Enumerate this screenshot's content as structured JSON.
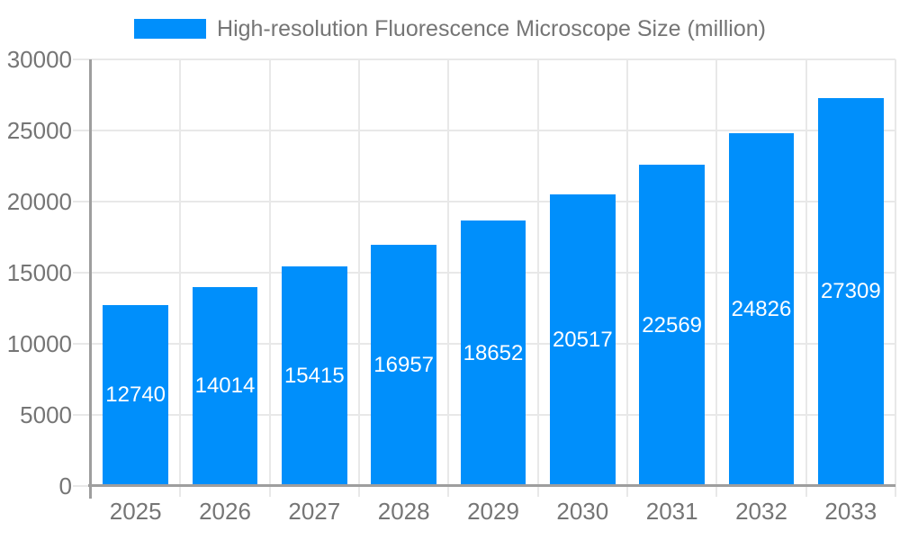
{
  "legend": {
    "series_label": "High-resolution Fluorescence Microscope Size (million)"
  },
  "colors": {
    "bar": "#008FFB",
    "grid": "#E8E8E8",
    "axis": "#9E9E9E",
    "text": "#757575",
    "value_label": "#FFFFFF",
    "background": "#FFFFFF"
  },
  "chart_data": {
    "type": "bar",
    "title": "High-resolution Fluorescence Microscope Size (million)",
    "categories": [
      "2025",
      "2026",
      "2027",
      "2028",
      "2029",
      "2030",
      "2031",
      "2032",
      "2033"
    ],
    "series": [
      {
        "name": "High-resolution Fluorescence Microscope Size (million)",
        "values": [
          12740,
          14014,
          15415,
          16957,
          18652,
          20517,
          22569,
          24826,
          27309
        ]
      }
    ],
    "xlabel": "",
    "ylabel": "",
    "ylim": [
      0,
      30000
    ],
    "yticks": [
      0,
      5000,
      10000,
      15000,
      20000,
      25000,
      30000
    ],
    "grid": true,
    "legend_position": "top",
    "value_labels_position": "inside-center",
    "value_labels_color": "#FFFFFF"
  }
}
